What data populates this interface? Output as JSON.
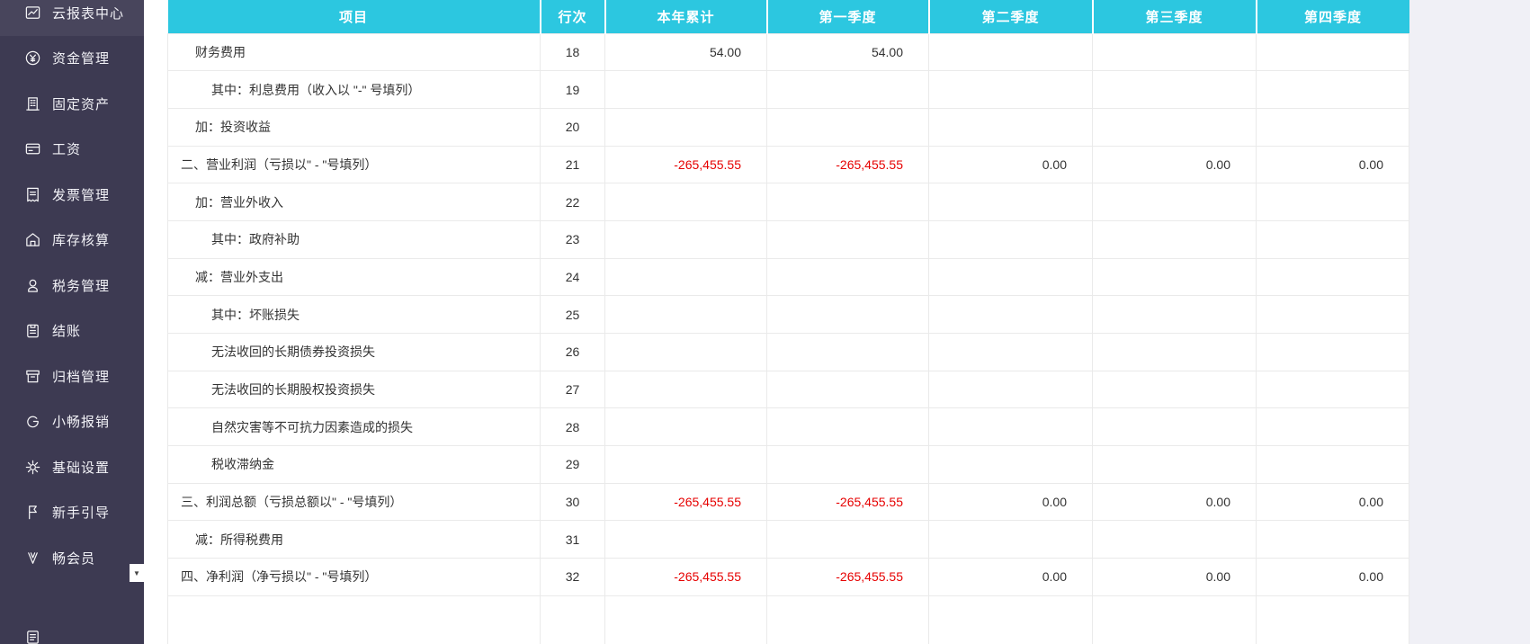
{
  "colors": {
    "header_bg": "#2cc7e0",
    "sidebar_bg": "#3d3a52",
    "negative": "#e60000"
  },
  "sidebar": {
    "scroll_down_glyph": "▼",
    "items": [
      {
        "label": "云报表中心",
        "icon": "cloud-report-icon"
      },
      {
        "label": "资金管理",
        "icon": "funds-icon"
      },
      {
        "label": "固定资产",
        "icon": "fixed-assets-icon"
      },
      {
        "label": "工资",
        "icon": "salary-icon"
      },
      {
        "label": "发票管理",
        "icon": "invoice-icon"
      },
      {
        "label": "库存核算",
        "icon": "inventory-icon"
      },
      {
        "label": "税务管理",
        "icon": "tax-icon"
      },
      {
        "label": "结账",
        "icon": "closing-icon"
      },
      {
        "label": "归档管理",
        "icon": "archive-icon"
      },
      {
        "label": "小畅报销",
        "icon": "reimburse-icon"
      },
      {
        "label": "基础设置",
        "icon": "settings-icon"
      },
      {
        "label": "新手引导",
        "icon": "guide-icon"
      },
      {
        "label": "畅会员",
        "icon": "member-icon"
      }
    ]
  },
  "table": {
    "columns": [
      "项目",
      "行次",
      "本年累计",
      "第一季度",
      "第二季度",
      "第三季度",
      "第四季度"
    ],
    "rows": [
      {
        "item": "财务费用",
        "indent": 1,
        "line": "18",
        "values": [
          "54.00",
          "54.00",
          "",
          "",
          ""
        ]
      },
      {
        "item": "其中：利息费用（收入以 \"-\" 号填列）",
        "indent": 2,
        "line": "19",
        "values": [
          "",
          "",
          "",
          "",
          ""
        ]
      },
      {
        "item": "加：投资收益",
        "indent": 1,
        "line": "20",
        "values": [
          "",
          "",
          "",
          "",
          ""
        ]
      },
      {
        "item": "二、营业利润（亏损以\" - \"号填列）",
        "indent": 0,
        "line": "21",
        "values": [
          "-265,455.55",
          "-265,455.55",
          "0.00",
          "0.00",
          "0.00"
        ]
      },
      {
        "item": "加：营业外收入",
        "indent": 1,
        "line": "22",
        "values": [
          "",
          "",
          "",
          "",
          ""
        ]
      },
      {
        "item": "其中：政府补助",
        "indent": 2,
        "line": "23",
        "values": [
          "",
          "",
          "",
          "",
          ""
        ]
      },
      {
        "item": "减：营业外支出",
        "indent": 1,
        "line": "24",
        "values": [
          "",
          "",
          "",
          "",
          ""
        ]
      },
      {
        "item": "其中：坏账损失",
        "indent": 2,
        "line": "25",
        "values": [
          "",
          "",
          "",
          "",
          ""
        ]
      },
      {
        "item": "无法收回的长期债券投资损失",
        "indent": 2,
        "line": "26",
        "values": [
          "",
          "",
          "",
          "",
          ""
        ]
      },
      {
        "item": "无法收回的长期股权投资损失",
        "indent": 2,
        "line": "27",
        "values": [
          "",
          "",
          "",
          "",
          ""
        ]
      },
      {
        "item": "自然灾害等不可抗力因素造成的损失",
        "indent": 2,
        "line": "28",
        "values": [
          "",
          "",
          "",
          "",
          ""
        ]
      },
      {
        "item": "税收滞纳金",
        "indent": 2,
        "line": "29",
        "values": [
          "",
          "",
          "",
          "",
          ""
        ]
      },
      {
        "item": "三、利润总额（亏损总额以\" - \"号填列）",
        "indent": 0,
        "line": "30",
        "values": [
          "-265,455.55",
          "-265,455.55",
          "0.00",
          "0.00",
          "0.00"
        ]
      },
      {
        "item": "减：所得税费用",
        "indent": 1,
        "line": "31",
        "values": [
          "",
          "",
          "",
          "",
          ""
        ]
      },
      {
        "item": "四、净利润（净亏损以\" - \"号填列）",
        "indent": 0,
        "line": "32",
        "values": [
          "-265,455.55",
          "-265,455.55",
          "0.00",
          "0.00",
          "0.00"
        ]
      }
    ]
  }
}
